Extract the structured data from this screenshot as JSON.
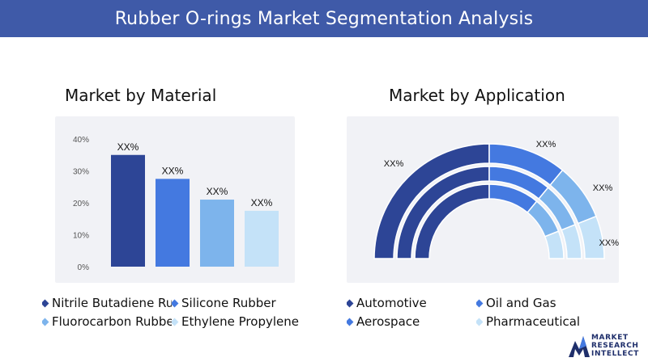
{
  "header": {
    "title": "Rubber O-rings Market Segmentation Analysis"
  },
  "sections": {
    "material_title": "Market by Material",
    "application_title": "Market by Application"
  },
  "chart_data": [
    {
      "type": "bar",
      "title": "Market by Material",
      "categories": [
        "Nitrile Butadiene Rubber",
        "Silicone Rubber",
        "Fluorocarbon Rubber",
        "Ethylene Propylene Diene"
      ],
      "values": [
        35,
        27.5,
        21,
        17.5
      ],
      "data_labels": [
        "XX%",
        "XX%",
        "XX%",
        "XX%"
      ],
      "yticks": [
        "0%",
        "10%",
        "20%",
        "30%",
        "40%"
      ],
      "ylim": [
        0,
        40
      ],
      "grid": false,
      "colors": [
        "#2d4596",
        "#4479e0",
        "#7db4ec",
        "#c4e2f8"
      ],
      "legend": [
        {
          "label": "Nitrile Butadiene Rub",
          "color": "#2d4596"
        },
        {
          "label": "Silicone Rubber",
          "color": "#4479e0"
        },
        {
          "label": "Fluorocarbon Rubber (",
          "color": "#7db4ec"
        },
        {
          "label": "Ethylene Propylene Di",
          "color": "#c4e2f8"
        }
      ]
    },
    {
      "type": "pie",
      "subtype": "semi-donut",
      "title": "Market by Application",
      "categories": [
        "Automotive",
        "Oil and Gas",
        "Aerospace",
        "Pharmaceutical"
      ],
      "values": [
        50,
        22,
        16,
        12
      ],
      "data_labels": [
        "XX%",
        "XX%",
        "XX%",
        "XX%"
      ],
      "colors": [
        "#2d4596",
        "#4479e0",
        "#7db4ec",
        "#c4e2f8"
      ],
      "legend": [
        {
          "label": "Automotive",
          "color": "#2d4596"
        },
        {
          "label": "Oil and Gas",
          "color": "#4479e0"
        },
        {
          "label": "Aerospace",
          "color": "#4479e0"
        },
        {
          "label": "Pharmaceutical",
          "color": "#c4e2f8"
        }
      ]
    }
  ],
  "logo": {
    "line1": "MARKET",
    "line2": "RESEARCH",
    "line3": "INTELLECT"
  }
}
